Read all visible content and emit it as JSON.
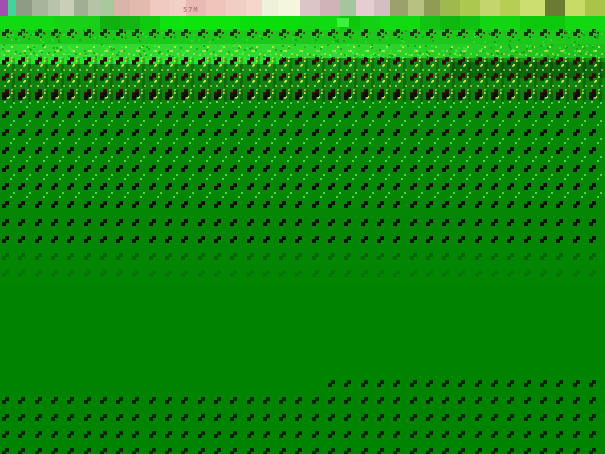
{
  "description": "Corrupted glitched frame: green field with repeating dark diagonal dash artifacts, speckle noise bands, pastel corruption blocks along top edge",
  "glitch_text": "57M",
  "palette": {
    "base_green": "#008400",
    "mid_green": "#0a8a0a",
    "band_bright": "#1cc81c",
    "band_lime": "#2fd92f",
    "band_lime_right": "#1dbd1d",
    "streak_green": "#2ae42a",
    "zone_dark_top": "#149114",
    "zone_dark_bottom": "#0e7c0e",
    "dash_black": "#0d0d0d",
    "dash_bottom": "#0b1f0b",
    "dash_red": "#471607",
    "dash_olive": "#1d2a08",
    "dot_bright": "#4fe64f",
    "dot_yellow": "#d8e344",
    "dot_pale": "#bfe36a",
    "mid_grad_top": "#0a8a0a",
    "mid_grad_bottom": "#028502"
  },
  "top_strip": {
    "row1": [
      [
        0,
        8,
        "#a34fae"
      ],
      [
        8,
        8,
        "#43d39c"
      ],
      [
        16,
        16,
        "#8f9c85"
      ],
      [
        32,
        16,
        "#a9b49c"
      ],
      [
        48,
        12,
        "#b9c2aa"
      ],
      [
        60,
        14,
        "#c9cfb6"
      ],
      [
        74,
        14,
        "#a0af94"
      ],
      [
        88,
        12,
        "#b6c4a5"
      ],
      [
        100,
        14,
        "#a9c89b"
      ],
      [
        114,
        16,
        "#d9b4a9"
      ],
      [
        130,
        20,
        "#e4baad"
      ],
      [
        150,
        20,
        "#f0cabe"
      ],
      [
        170,
        16,
        "#f3d0c5"
      ],
      [
        186,
        20,
        "#e9bab3"
      ],
      [
        206,
        20,
        "#eec4bb"
      ],
      [
        226,
        20,
        "#f1cec3"
      ],
      [
        246,
        16,
        "#f6d6cb"
      ],
      [
        262,
        16,
        "#eff1d9"
      ],
      [
        278,
        22,
        "#f5f7dd"
      ],
      [
        300,
        20,
        "#dac5c7"
      ],
      [
        320,
        20,
        "#ceb4b9"
      ],
      [
        340,
        16,
        "#a6c49e"
      ],
      [
        356,
        18,
        "#e4ced1"
      ],
      [
        374,
        16,
        "#d3bfc2"
      ],
      [
        390,
        18,
        "#9ba16b"
      ],
      [
        408,
        16,
        "#b9c181"
      ],
      [
        424,
        16,
        "#909b56"
      ],
      [
        440,
        20,
        "#9eba4f"
      ],
      [
        460,
        20,
        "#abc94f"
      ],
      [
        480,
        20,
        "#c3d56b"
      ],
      [
        500,
        20,
        "#b6ce53"
      ],
      [
        520,
        25,
        "#ccde6f"
      ],
      [
        545,
        20,
        "#6b7b34"
      ],
      [
        565,
        20,
        "#c9db67"
      ],
      [
        585,
        20,
        "#aac449"
      ]
    ],
    "row2": [
      [
        0,
        55,
        "#10da10"
      ],
      [
        55,
        45,
        "#18d018"
      ],
      [
        100,
        20,
        "#10b010"
      ],
      [
        120,
        20,
        "#13b613"
      ],
      [
        140,
        20,
        "#10ca10"
      ],
      [
        160,
        20,
        "#0fe00f"
      ],
      [
        180,
        60,
        "#0ce40c"
      ],
      [
        240,
        60,
        "#0ade0a"
      ],
      [
        300,
        20,
        "#13d513"
      ],
      [
        320,
        20,
        "#10da10"
      ],
      [
        340,
        20,
        "#0dc70d"
      ],
      [
        360,
        20,
        "#12d112"
      ],
      [
        380,
        40,
        "#0fdb0f"
      ],
      [
        420,
        20,
        "#13c313"
      ],
      [
        440,
        20,
        "#0eb80e"
      ],
      [
        460,
        20,
        "#11c111"
      ],
      [
        480,
        40,
        "#10d510"
      ],
      [
        520,
        45,
        "#0cc90c"
      ],
      [
        565,
        40,
        "#12d812"
      ]
    ]
  }
}
